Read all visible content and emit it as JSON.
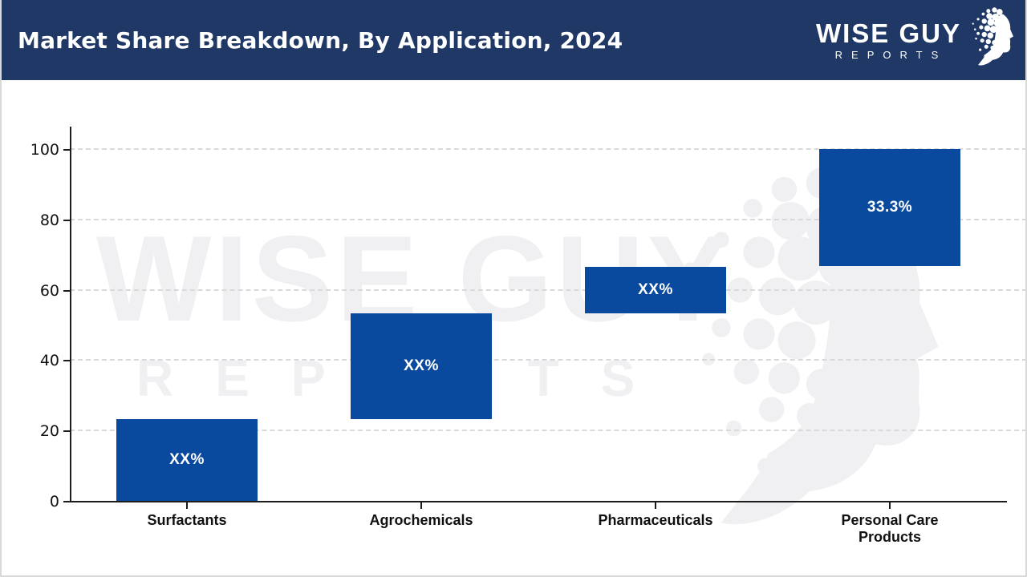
{
  "header": {
    "title": "Market Share Breakdown, By Application, 2024",
    "background_color": "#1f3866",
    "logo": {
      "wordmark": "WISE GUY",
      "tagline": "REPORTS"
    }
  },
  "watermark": {
    "wordmark": "WISE GUY",
    "tagline": "REPORTS",
    "color": "#f0f0f2"
  },
  "chart_data": {
    "type": "bar",
    "variant": "floating-waterfall",
    "title": "Market Share Breakdown, By Application, 2024",
    "xlabel": "",
    "ylabel": "",
    "categories": [
      "Surfactants",
      "Agrochemicals",
      "Pharmaceuticals",
      "Personal Care Products"
    ],
    "bars": [
      {
        "category": "Surfactants",
        "start": 0,
        "end": 23.2,
        "label": "XX%"
      },
      {
        "category": "Agrochemicals",
        "start": 23.2,
        "end": 53.2,
        "label": "XX%"
      },
      {
        "category": "Pharmaceuticals",
        "start": 53.3,
        "end": 66.6,
        "label": "XX%"
      },
      {
        "category": "Personal Care Products",
        "start": 66.7,
        "end": 100,
        "label": "33.3%"
      }
    ],
    "yticks": [
      0,
      20,
      40,
      60,
      80,
      100
    ],
    "ylim": [
      0,
      106.5
    ],
    "grid": "horizontal-dashed",
    "legend": "none",
    "bar_color": "#0a4a9e",
    "bar_label_color": "#ffffff",
    "axis_color": "#1c1c1c",
    "grid_color": "#d9d9d9"
  }
}
